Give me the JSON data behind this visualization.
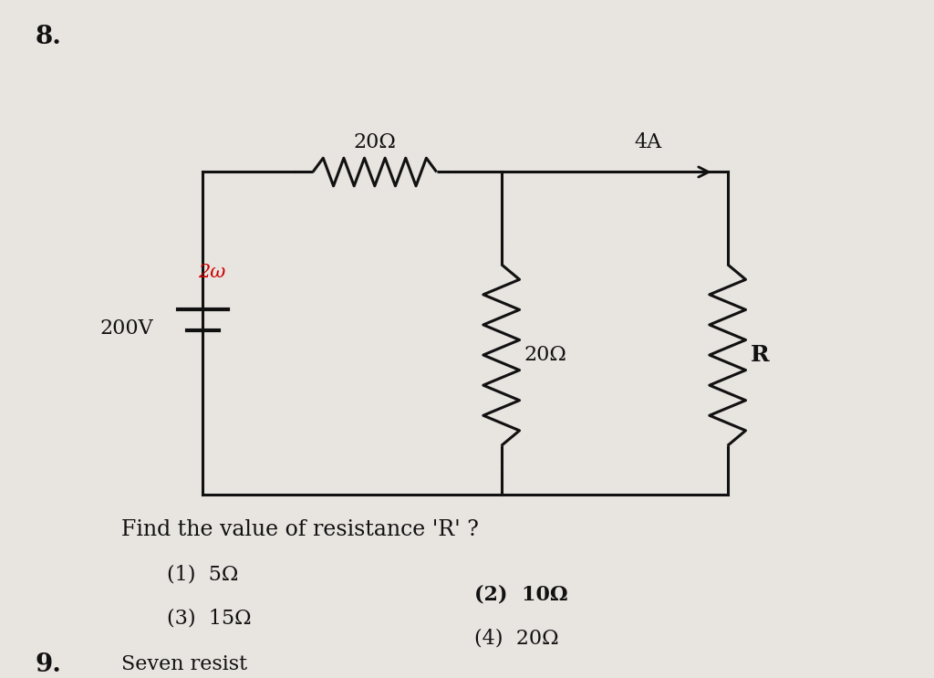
{
  "question_number": "8.",
  "question_text": "Find the value of resistance 'R' ?",
  "options_left": [
    "(1)  5Ω",
    "(3)  15Ω"
  ],
  "options_right": [
    "(2)  10Ω",
    "(4)  20Ω"
  ],
  "next_question": "9.",
  "next_text": "Seven resist",
  "voltage_label": "200V",
  "voltage_annotation": "2ω",
  "resistor1_label": "20Ω",
  "resistor2_label": "20Ω",
  "resistor3_label": "R",
  "current_label": "4A",
  "background_color": "#e8e4e0",
  "circuit_color": "#111111",
  "annotation_color": "#cc0000",
  "text_color": "#111111",
  "fig_width": 10.24,
  "fig_height": 7.43
}
